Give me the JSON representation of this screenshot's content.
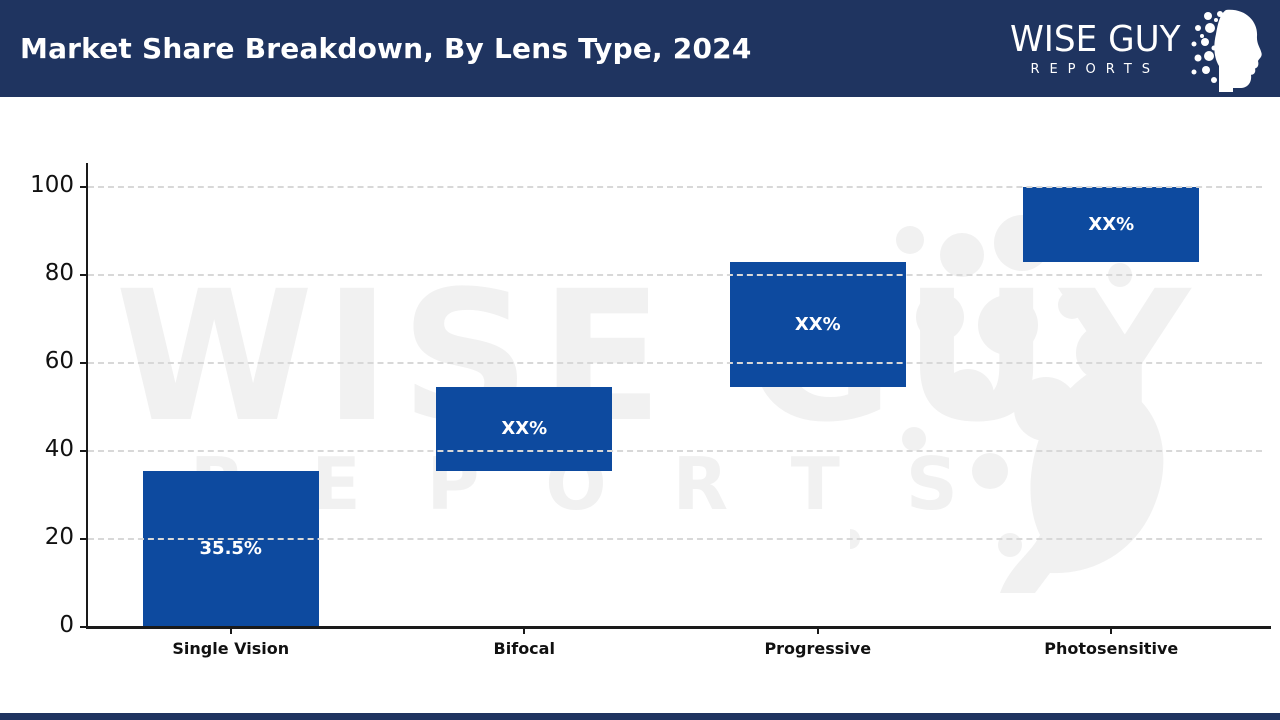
{
  "header": {
    "title": "Market Share Breakdown, By Lens Type, 2024",
    "logo": {
      "wordmark": "WISE GUY",
      "subtext": "REPORTS"
    }
  },
  "watermark": {
    "wordmark": "WISE GUY",
    "subtext": "REPORTS"
  },
  "colors": {
    "header-bg": "#1F3460",
    "bar": "#0D4A9F",
    "grid": "#D8D8D8",
    "axis": "#1A1A1A",
    "text": "#111111",
    "watermark": "#F1F1F1"
  },
  "chart_data": {
    "type": "bar",
    "subtype": "waterfall",
    "title": "Market Share Breakdown, By Lens Type, 2024",
    "categories": [
      "Single Vision",
      "Bifocal",
      "Progressive",
      "Photosensitive"
    ],
    "series": [
      {
        "name": "Market share (%)",
        "segments": [
          [
            0,
            35.5
          ],
          [
            35.5,
            54.5
          ],
          [
            54.5,
            83
          ],
          [
            83,
            100
          ]
        ],
        "labels": [
          "35.5%",
          "XX%",
          "XX%",
          "XX%"
        ]
      }
    ],
    "xlabel": "",
    "ylabel": "",
    "yticks": [
      0,
      20,
      40,
      60,
      80,
      100
    ],
    "ylim": [
      0,
      105
    ],
    "grid": "horizontal-dashed",
    "legend": "none"
  }
}
